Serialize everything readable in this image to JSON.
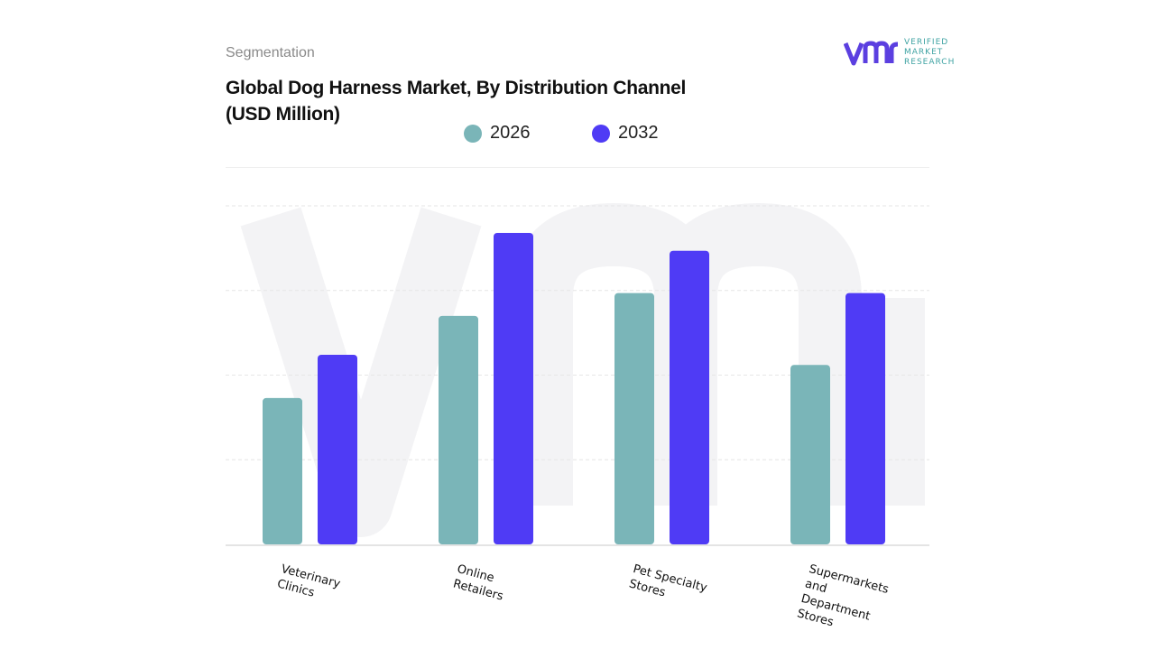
{
  "header": {
    "segment_label": "Segmentation",
    "logo_text": [
      "VERIFIED",
      "MARKET",
      "RESEARCH"
    ]
  },
  "chart_data": {
    "type": "bar",
    "title": "Global Dog Harness Market, By Distribution Channel (USD Million)",
    "title_lines": [
      "Global Dog Harness Market, By Distribution Channel",
      "(USD Million)"
    ],
    "categories": [
      "Veterinary Clinics",
      "Online Retailers",
      "Pet Specialty Stores",
      "Supermarkets and Department Stores"
    ],
    "category_lines": [
      [
        "Veterinary",
        "Clinics"
      ],
      [
        "Online",
        "Retailers"
      ],
      [
        "Pet Specialty",
        "Stores"
      ],
      [
        "Supermarkets",
        "and",
        "Department",
        "Stores"
      ]
    ],
    "series": [
      {
        "name": "2026",
        "color": "#7ab5b8",
        "values": [
          1.73,
          2.7,
          2.97,
          2.12
        ]
      },
      {
        "name": "2032",
        "color": "#4f3bf5",
        "values": [
          2.24,
          3.68,
          3.47,
          2.97
        ]
      }
    ],
    "ylim": [
      0,
      4
    ],
    "y_tick_labels_shown": false,
    "grid": true,
    "legend_position": "top-center",
    "xlabel": "",
    "ylabel": ""
  }
}
